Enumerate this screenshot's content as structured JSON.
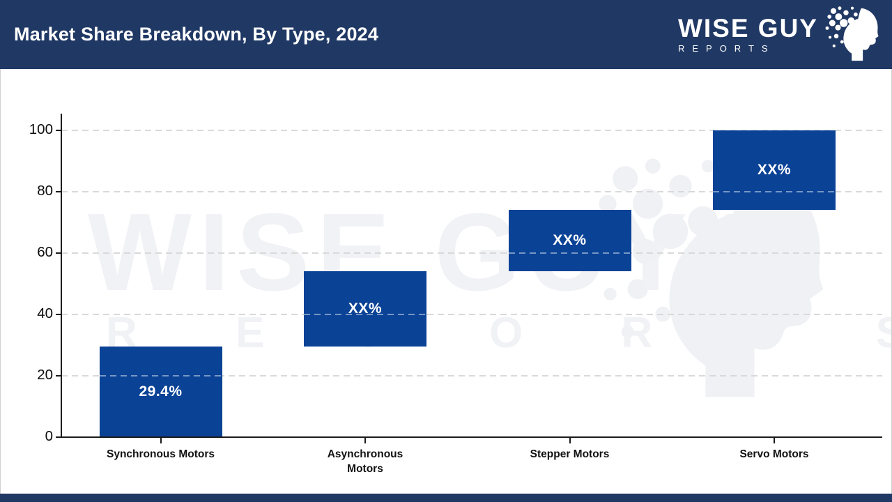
{
  "header": {
    "title": "Market Share Breakdown, By Type, 2024",
    "logo_line1": "WISE GUY",
    "logo_line2": "REPORTS"
  },
  "watermark": {
    "text_line1": "WISE GUY",
    "text_line2": "R E P O R T S"
  },
  "theme": {
    "header_navy": "#203864",
    "bar_blue": "#0a4296",
    "grid_gray": "#d9d9d9",
    "axis_black": "#1a1a1a",
    "watermark_gray": "#f1f2f5"
  },
  "chart_data": {
    "type": "bar",
    "variant": "floating-waterfall",
    "title": "Market Share Breakdown, By Type, 2024",
    "categories": [
      "Synchronous Motors",
      "Asynchronous\nMotors",
      "Stepper Motors",
      "Servo Motors"
    ],
    "segments": [
      {
        "category": "Synchronous Motors",
        "start": 0,
        "end": 29.4,
        "label": "29.4%"
      },
      {
        "category": "Asynchronous Motors",
        "start": 29.4,
        "end": 54,
        "label": "XX%"
      },
      {
        "category": "Stepper Motors",
        "start": 54,
        "end": 74,
        "label": "XX%"
      },
      {
        "category": "Servo Motors",
        "start": 74,
        "end": 100,
        "label": "XX%"
      }
    ],
    "values_pct": [
      29.4,
      24.6,
      20,
      26
    ],
    "ylim": [
      0,
      100
    ],
    "yticks": [
      0,
      20,
      40,
      60,
      80,
      100
    ],
    "xlabel": "",
    "ylabel": "",
    "grid": "horizontal-dashed",
    "legend": "none",
    "bar_color": "#0a4296",
    "label_color": "#ffffff"
  }
}
